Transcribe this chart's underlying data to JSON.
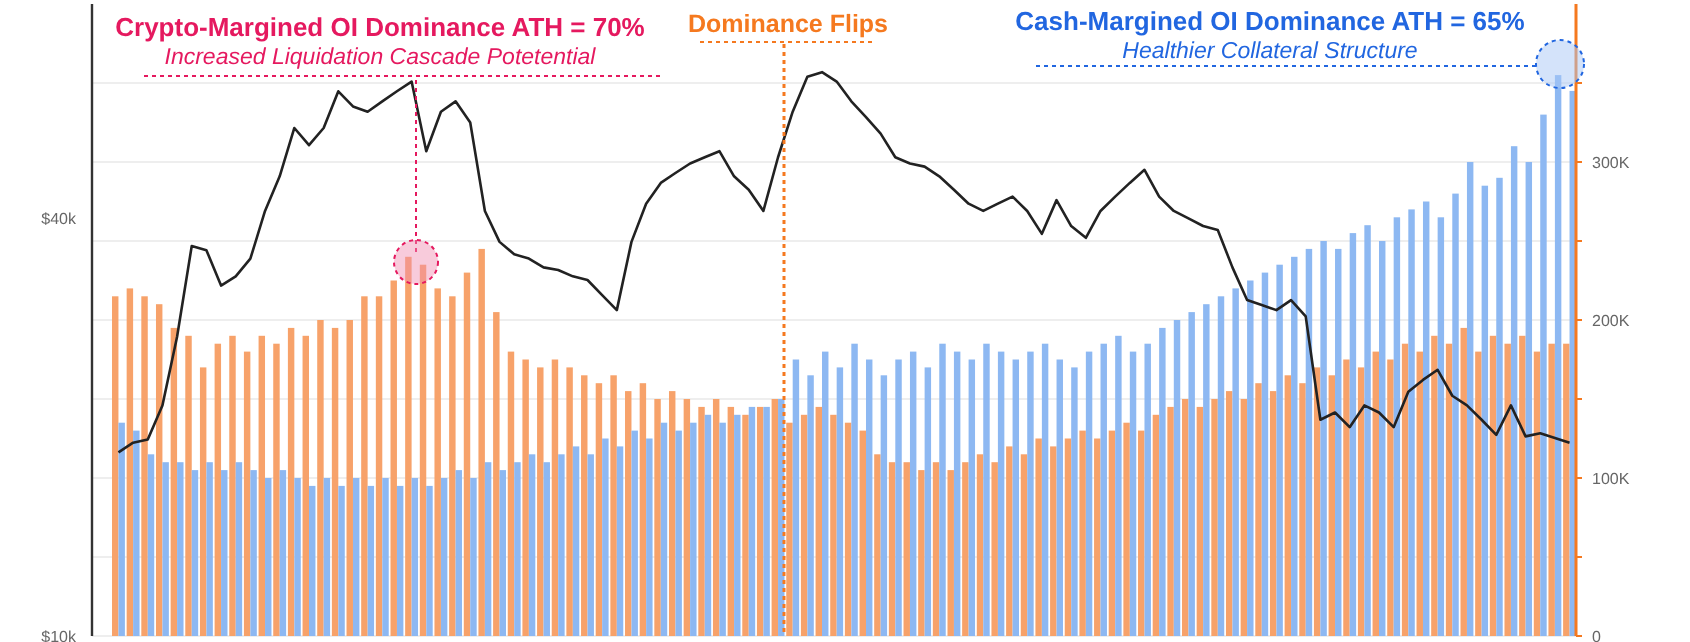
{
  "chart_data": {
    "type": "bar",
    "categories": [
      null,
      null,
      null,
      null,
      null,
      null,
      null,
      null,
      null,
      null,
      null,
      null,
      null,
      null,
      null,
      null,
      null,
      null,
      null,
      null,
      null,
      null,
      null,
      null,
      null,
      null,
      null,
      null,
      null,
      null,
      null,
      null,
      null,
      null,
      null,
      null,
      null,
      null,
      null,
      null,
      null,
      null,
      null,
      null,
      null,
      null,
      null,
      null,
      null,
      null,
      null,
      null,
      null,
      null,
      null,
      null,
      null,
      null,
      null,
      null,
      null,
      null,
      null,
      null,
      null,
      null,
      null,
      null,
      null,
      null,
      null,
      null,
      null,
      null,
      null,
      null,
      null,
      null,
      null,
      null,
      null,
      null,
      null,
      null,
      null,
      null,
      null,
      null,
      null,
      null,
      null,
      null,
      null,
      null,
      null,
      null,
      null,
      null,
      null,
      null
    ],
    "series": [
      {
        "axis": "y2",
        "color": "#f7a26a",
        "values": [
          215000,
          220000,
          215000,
          210000,
          195000,
          190000,
          170000,
          185000,
          190000,
          180000,
          190000,
          185000,
          195000,
          190000,
          200000,
          195000,
          200000,
          215000,
          215000,
          225000,
          240000,
          235000,
          220000,
          215000,
          230000,
          245000,
          205000,
          180000,
          175000,
          170000,
          175000,
          170000,
          165000,
          160000,
          165000,
          155000,
          160000,
          150000,
          155000,
          150000,
          145000,
          150000,
          145000,
          140000,
          145000,
          150000,
          135000,
          140000,
          145000,
          140000,
          135000,
          130000,
          115000,
          110000,
          110000,
          105000,
          110000,
          105000,
          110000,
          115000,
          110000,
          120000,
          115000,
          125000,
          120000,
          125000,
          130000,
          125000,
          130000,
          135000,
          130000,
          140000,
          145000,
          150000,
          145000,
          150000,
          155000,
          150000,
          160000,
          155000,
          165000,
          160000,
          170000,
          165000,
          175000,
          170000,
          180000,
          175000,
          185000,
          180000,
          190000,
          185000,
          195000,
          180000,
          190000,
          185000,
          190000,
          180000,
          185000,
          185000
        ]
      },
      {
        "axis": "y2",
        "color": "#8db8f2",
        "values": [
          135000,
          130000,
          115000,
          110000,
          110000,
          105000,
          110000,
          105000,
          110000,
          105000,
          100000,
          105000,
          100000,
          95000,
          100000,
          95000,
          100000,
          95000,
          100000,
          95000,
          100000,
          95000,
          100000,
          105000,
          100000,
          110000,
          105000,
          110000,
          115000,
          110000,
          115000,
          120000,
          115000,
          125000,
          120000,
          130000,
          125000,
          135000,
          130000,
          135000,
          140000,
          135000,
          140000,
          145000,
          145000,
          150000,
          175000,
          165000,
          180000,
          170000,
          185000,
          175000,
          165000,
          175000,
          180000,
          170000,
          185000,
          180000,
          175000,
          185000,
          180000,
          175000,
          180000,
          185000,
          175000,
          170000,
          180000,
          185000,
          190000,
          180000,
          185000,
          195000,
          200000,
          205000,
          210000,
          215000,
          220000,
          225000,
          230000,
          235000,
          240000,
          245000,
          250000,
          245000,
          255000,
          260000,
          250000,
          265000,
          270000,
          275000,
          265000,
          280000,
          300000,
          285000,
          290000,
          310000,
          300000,
          330000,
          355000,
          345000
        ]
      },
      {
        "type": "line",
        "axis": "y",
        "color": "#222222",
        "values": [
          18400,
          19000,
          19200,
          21500,
          27000,
          36500,
          36000,
          32000,
          33000,
          35000,
          41000,
          46000,
          54000,
          51000,
          54000,
          61000,
          58000,
          57000,
          59000,
          61000,
          63000,
          50000,
          57000,
          59000,
          55000,
          41000,
          37000,
          35500,
          35000,
          34000,
          33700,
          33000,
          32600,
          31000,
          29500,
          37000,
          42000,
          45000,
          46500,
          48000,
          49000,
          50000,
          46000,
          44000,
          41000,
          49000,
          57000,
          64000,
          65000,
          63000,
          59000,
          56000,
          53000,
          49000,
          48000,
          47500,
          46000,
          44000,
          42000,
          41000,
          42000,
          43000,
          41000,
          38000,
          42500,
          39000,
          37500,
          41000,
          43000,
          45000,
          47000,
          43000,
          41000,
          40000,
          39000,
          38500,
          34000,
          30500,
          30000,
          29500,
          30500,
          28900,
          20500,
          21000,
          20000,
          21500,
          21000,
          20000,
          22500,
          23400,
          24200,
          22200,
          21500,
          20500,
          19500,
          21500,
          19400,
          19600,
          19300,
          19000
        ]
      }
    ],
    "ylim": [
      10000,
      81500
    ],
    "yticks": [
      {
        "value": 10000,
        "label": "$10k"
      },
      {
        "value": 40000,
        "label": "$40k"
      }
    ],
    "y2lim": [
      0,
      400000
    ],
    "y2ticks": [
      {
        "value": 0,
        "label": "0"
      },
      {
        "value": 50000,
        "label": null
      },
      {
        "value": 100000,
        "label": "100K"
      },
      {
        "value": 150000,
        "label": null
      },
      {
        "value": 200000,
        "label": "200K"
      },
      {
        "value": 250000,
        "label": null
      },
      {
        "value": 300000,
        "label": "300K"
      },
      {
        "value": 350000,
        "label": null
      }
    ],
    "log": "y",
    "grid": true,
    "annotations": [
      "Crypto-Margined OI Dominance ATH = 70%",
      "Increased Liquidation Cascade Potetential",
      "Dominance Flips",
      "Cash-Margined OI Dominance ATH = 65%",
      "Healthier Collateral Structure"
    ]
  }
}
